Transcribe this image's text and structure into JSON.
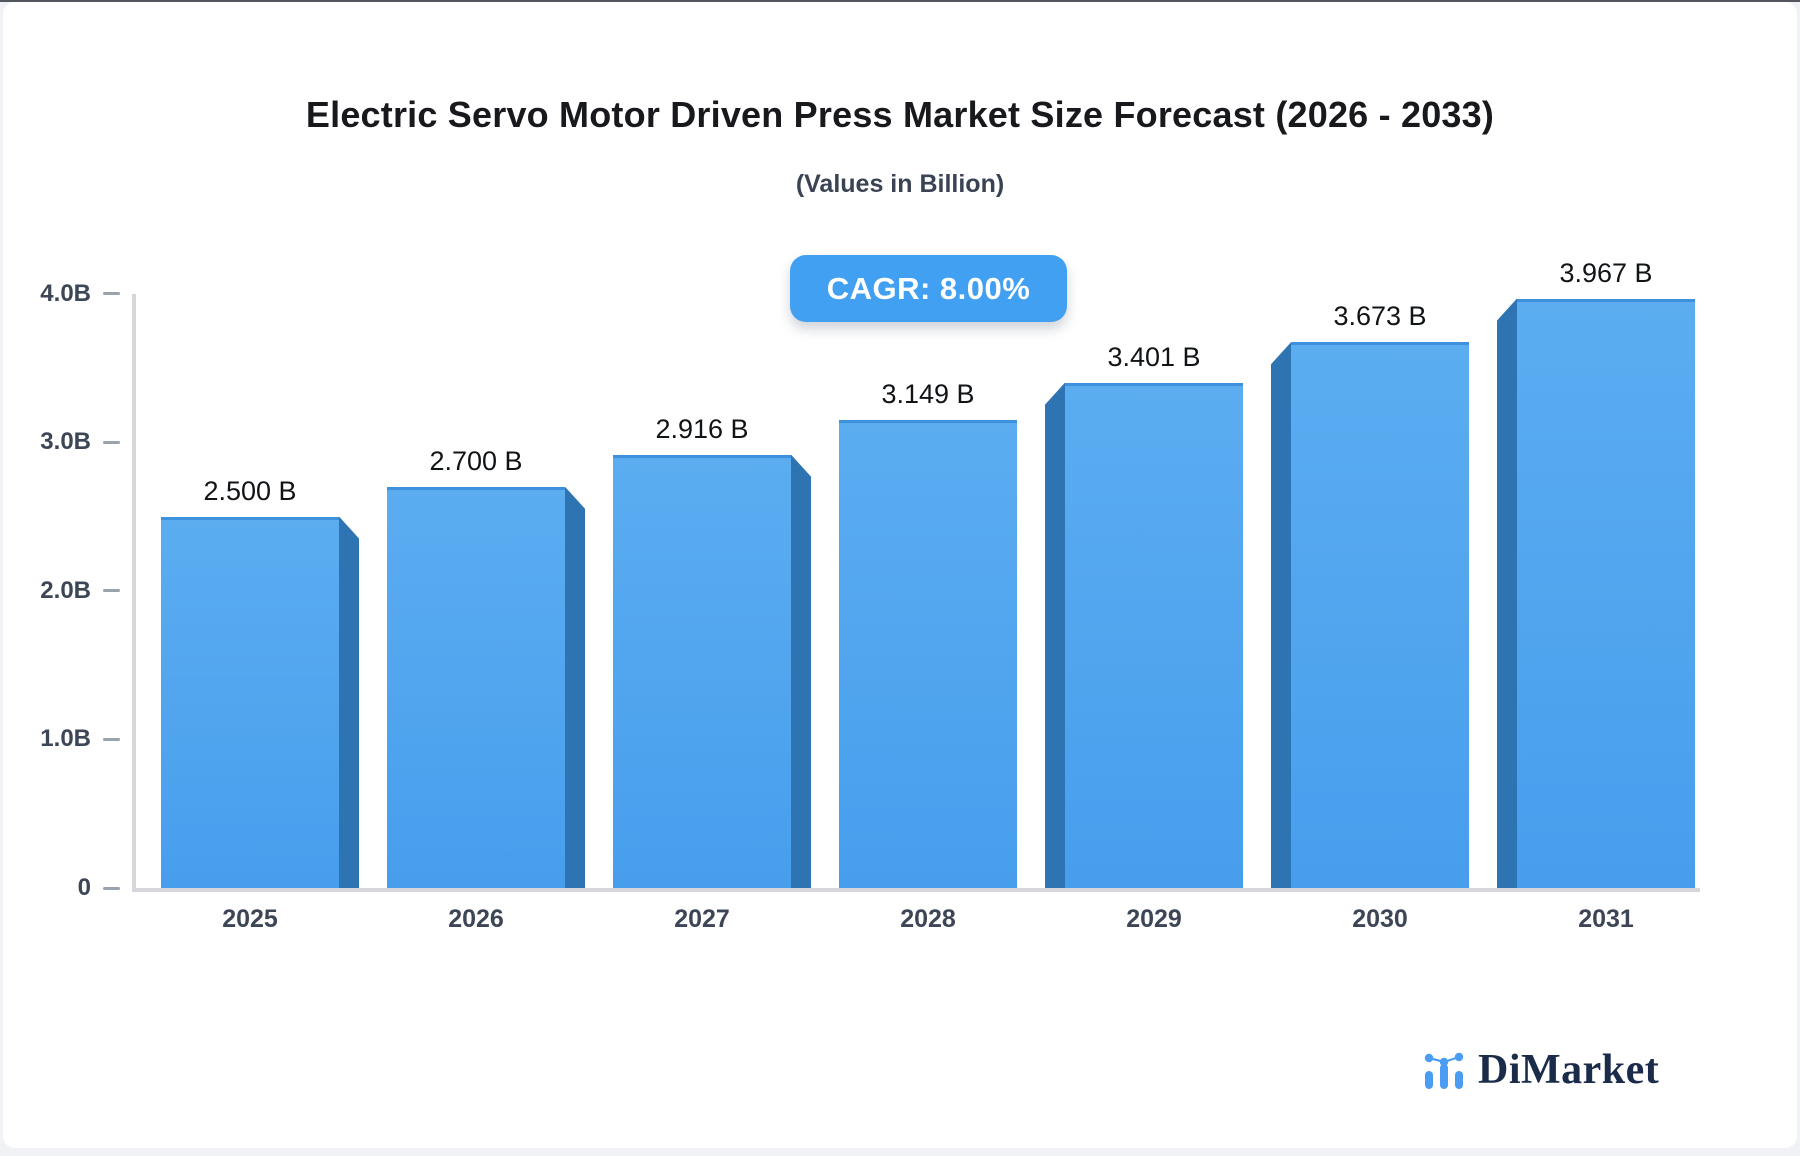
{
  "chart_data": {
    "type": "bar",
    "title": "Electric Servo Motor Driven Press Market Size Forecast (2026 - 2033)",
    "subtitle": "(Values in Billion)",
    "cagr_label": "CAGR: 8.00%",
    "categories": [
      "2025",
      "2026",
      "2027",
      "2028",
      "2029",
      "2030",
      "2031"
    ],
    "values": [
      2.5,
      2.7,
      2.916,
      3.149,
      3.401,
      3.673,
      3.967
    ],
    "value_labels": [
      "2.500 B",
      "2.700 B",
      "2.916 B",
      "3.149 B",
      "3.401 B",
      "3.673 B",
      "3.967 B"
    ],
    "xlabel": "",
    "ylabel": "",
    "ylim": [
      0,
      4.0
    ],
    "yticks": [
      {
        "label": "4.0B",
        "value": 4.0
      },
      {
        "label": "3.0B",
        "value": 3.0
      },
      {
        "label": "2.0B",
        "value": 2.0
      },
      {
        "label": "1.0B",
        "value": 1.0
      },
      {
        "label": "0",
        "value": 0.0
      }
    ],
    "grid": false,
    "legend": "none",
    "bar_style": "3d-extruded"
  },
  "footer": {
    "brand": "DiMarket"
  },
  "colors": {
    "bar_face_top": "#5badf0",
    "bar_face_bottom": "#479eed",
    "bar_top_edge": "#3e92dd",
    "bar_side": "#2f74b2",
    "badge_bg": "#41a0f2",
    "badge_text": "#ffffff",
    "axis_line": "#d6d7db",
    "tick_dash": "#9aa2af",
    "axis_label": "#3d4656",
    "value_label": "#111417",
    "title": "#17191d",
    "subtitle": "#3a4354",
    "logo_navy": "#1b2b4a",
    "logo_blue": "#4a9df3"
  }
}
